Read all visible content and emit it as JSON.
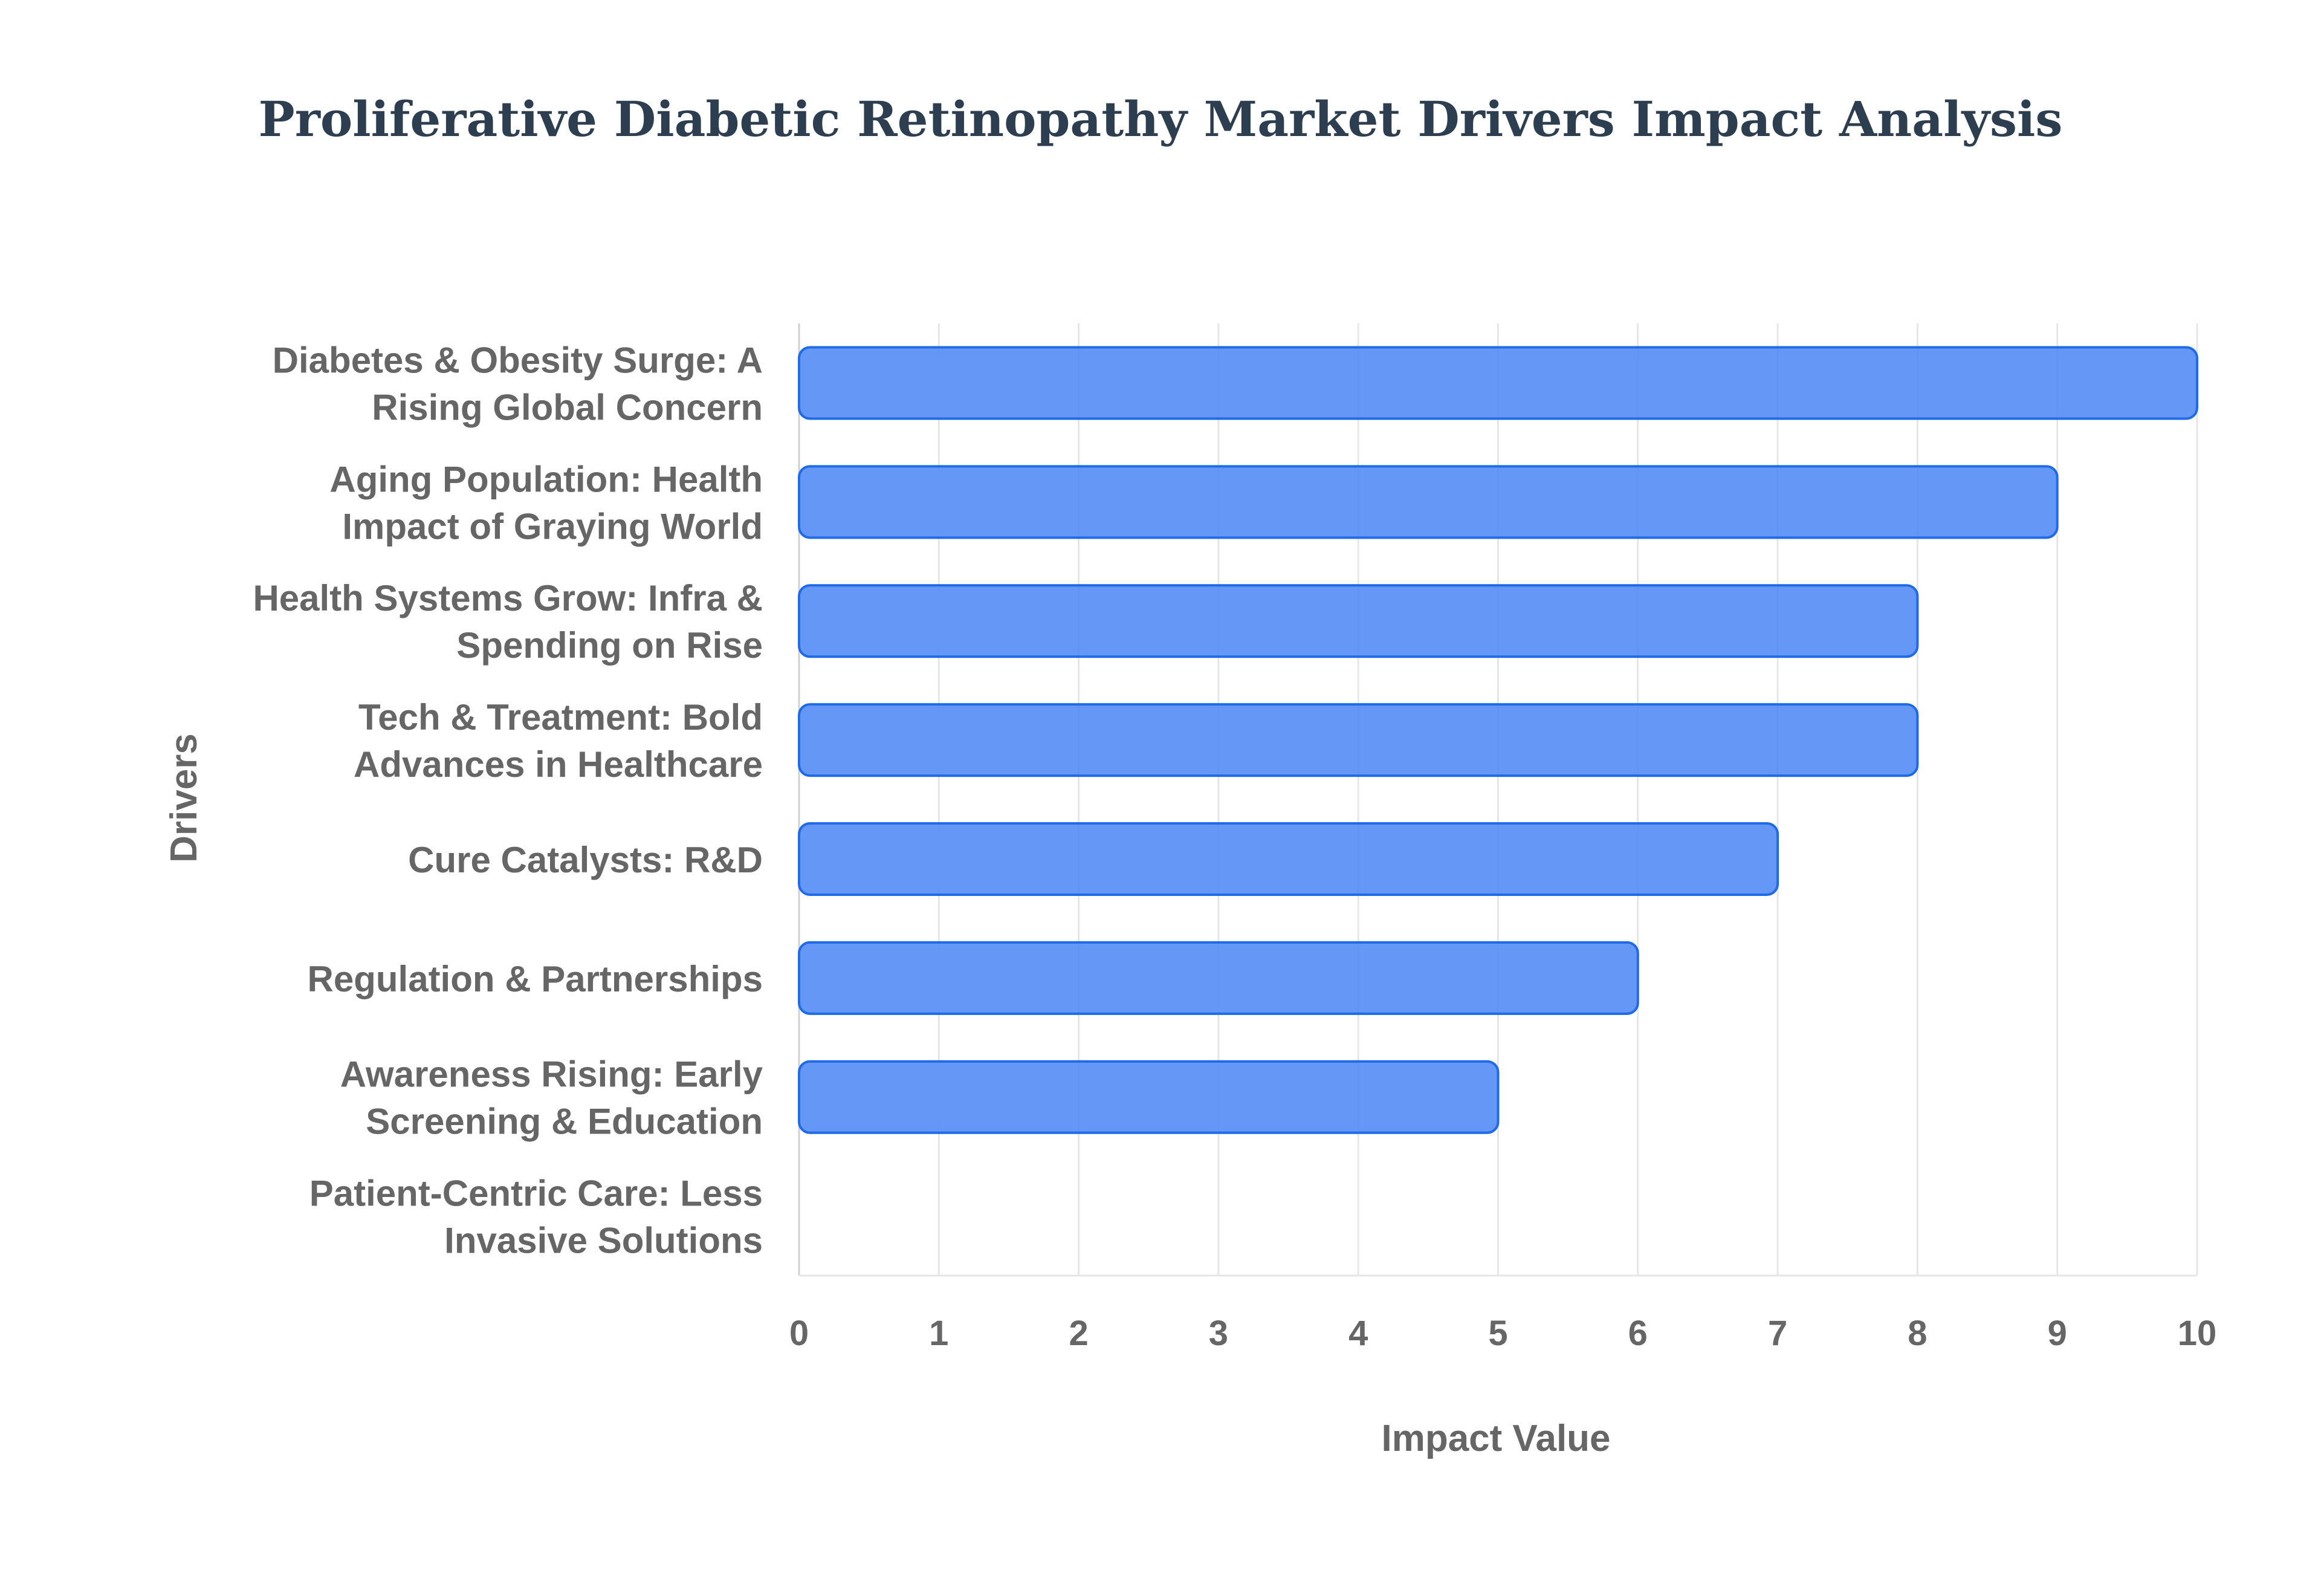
{
  "chart_data": {
    "type": "bar",
    "orientation": "horizontal",
    "title": "Proliferative Diabetic Retinopathy Market Drivers Impact Analysis",
    "xlabel": "Impact Value",
    "ylabel": "Drivers",
    "xlim": [
      0,
      10
    ],
    "x_ticks": [
      "0",
      "1",
      "2",
      "3",
      "4",
      "5",
      "6",
      "7",
      "8",
      "9",
      "10"
    ],
    "grid": true,
    "legend": false,
    "bar_color": "#4a86f5",
    "bar_border_color": "#1f6ae8",
    "categories": [
      [
        "Diabetes & Obesity Surge: A",
        "Rising Global Concern"
      ],
      [
        "Aging Population: Health",
        "Impact of Graying World"
      ],
      [
        "Health Systems Grow: Infra &",
        "Spending on Rise"
      ],
      [
        "Tech & Treatment: Bold",
        "Advances in Healthcare"
      ],
      [
        "Cure Catalysts: R&D"
      ],
      [
        "Regulation & Partnerships"
      ],
      [
        "Awareness Rising: Early",
        "Screening & Education"
      ],
      [
        "Patient-Centric Care: Less",
        "Invasive Solutions"
      ]
    ],
    "values": [
      10,
      9,
      8,
      8,
      7,
      6,
      5,
      0
    ]
  }
}
